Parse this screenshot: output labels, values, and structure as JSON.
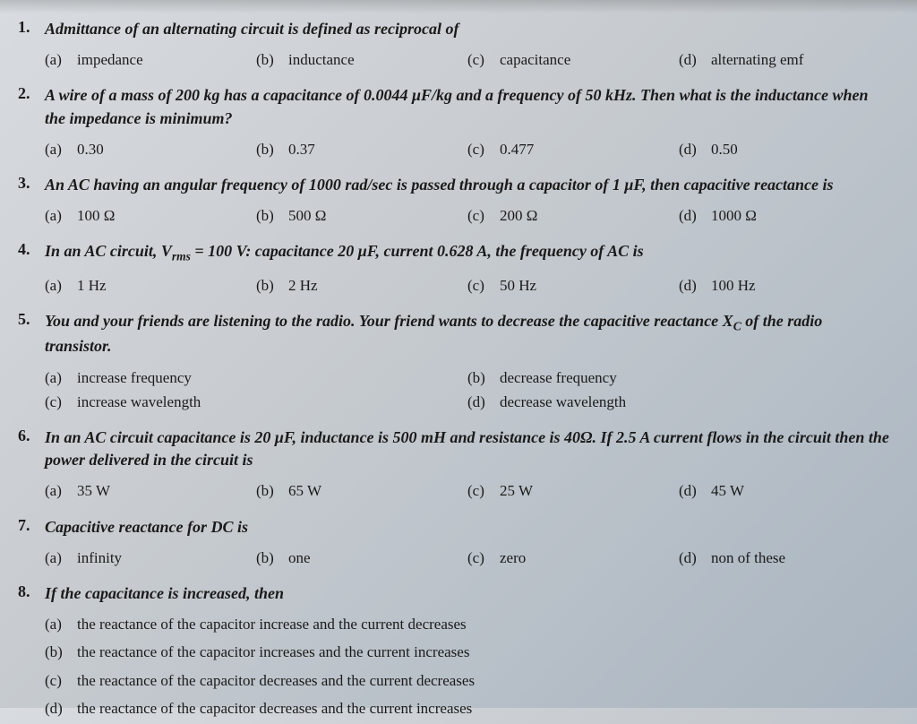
{
  "questions": [
    {
      "num": "1.",
      "text": "Admittance of an alternating circuit is defined as reciprocal of",
      "layout": "4col",
      "options": [
        {
          "label": "(a)",
          "text": "impedance"
        },
        {
          "label": "(b)",
          "text": "inductance"
        },
        {
          "label": "(c)",
          "text": "capacitance"
        },
        {
          "label": "(d)",
          "text": "alternating emf"
        }
      ]
    },
    {
      "num": "2.",
      "text": "A wire of a mass of 200 kg has a capacitance of 0.0044 μF/kg and a frequency of 50 kHz. Then what is the inductance when the impedance is minimum?",
      "layout": "4col",
      "options": [
        {
          "label": "(a)",
          "text": "0.30"
        },
        {
          "label": "(b)",
          "text": "0.37"
        },
        {
          "label": "(c)",
          "text": "0.477"
        },
        {
          "label": "(d)",
          "text": "0.50"
        }
      ]
    },
    {
      "num": "3.",
      "text": "An AC having an angular frequency of 1000 rad/sec is passed through a capacitor of 1 μF, then capacitive reactance is",
      "layout": "4col",
      "options": [
        {
          "label": "(a)",
          "text": "100 Ω"
        },
        {
          "label": "(b)",
          "text": "500 Ω"
        },
        {
          "label": "(c)",
          "text": "200 Ω"
        },
        {
          "label": "(d)",
          "text": "1000 Ω"
        }
      ]
    },
    {
      "num": "4.",
      "text_parts": {
        "pre": "In an AC circuit, V",
        "sub": "rms",
        "post": " = 100 V: capacitance 20 μF, current 0.628 A, the frequency of AC is"
      },
      "layout": "4col",
      "options": [
        {
          "label": "(a)",
          "text": "1 Hz"
        },
        {
          "label": "(b)",
          "text": "2 Hz"
        },
        {
          "label": "(c)",
          "text": "50 Hz"
        },
        {
          "label": "(d)",
          "text": "100 Hz"
        }
      ]
    },
    {
      "num": "5.",
      "text_parts": {
        "pre": "You and your friends are listening to the radio. Your friend wants to decrease the capacitive reactance X",
        "sub": "C",
        "post": " of the radio transistor."
      },
      "layout": "2col",
      "options": [
        {
          "label": "(a)",
          "text": "increase frequency"
        },
        {
          "label": "(b)",
          "text": "decrease frequency"
        },
        {
          "label": "(c)",
          "text": "increase wavelength"
        },
        {
          "label": "(d)",
          "text": "decrease wavelength"
        }
      ]
    },
    {
      "num": "6.",
      "text": "In an AC circuit capacitance is 20 μF, inductance is 500 mH and resistance is 40Ω. If 2.5 A current flows in the circuit then the power delivered in the circuit is",
      "layout": "4col",
      "options": [
        {
          "label": "(a)",
          "text": "35 W"
        },
        {
          "label": "(b)",
          "text": "65 W"
        },
        {
          "label": "(c)",
          "text": "25 W"
        },
        {
          "label": "(d)",
          "text": "45 W"
        }
      ]
    },
    {
      "num": "7.",
      "text": "Capacitive reactance for DC is",
      "layout": "4col",
      "options": [
        {
          "label": "(a)",
          "text": "infinity"
        },
        {
          "label": "(b)",
          "text": "one"
        },
        {
          "label": "(c)",
          "text": "zero"
        },
        {
          "label": "(d)",
          "text": "non of these"
        }
      ]
    },
    {
      "num": "8.",
      "text": "If the capacitance is increased, then",
      "layout": "1col",
      "options": [
        {
          "label": "(a)",
          "text": "the reactance of the capacitor increase and the current decreases"
        },
        {
          "label": "(b)",
          "text": "the reactance of the capacitor increases and the current increases"
        },
        {
          "label": "(c)",
          "text": "the reactance of the capacitor decreases and the current decreases"
        },
        {
          "label": "(d)",
          "text": "the reactance of the capacitor decreases and the current increases"
        }
      ]
    }
  ],
  "styling": {
    "background_gradient": [
      "#d8dce0",
      "#c8ccd0",
      "#b8c0c8",
      "#a8b4c0"
    ],
    "text_color": "#1a1a1a",
    "question_font_size": 18,
    "option_font_size": 17,
    "question_font_style": "italic bold",
    "font_family": "Georgia, Times New Roman, serif"
  }
}
